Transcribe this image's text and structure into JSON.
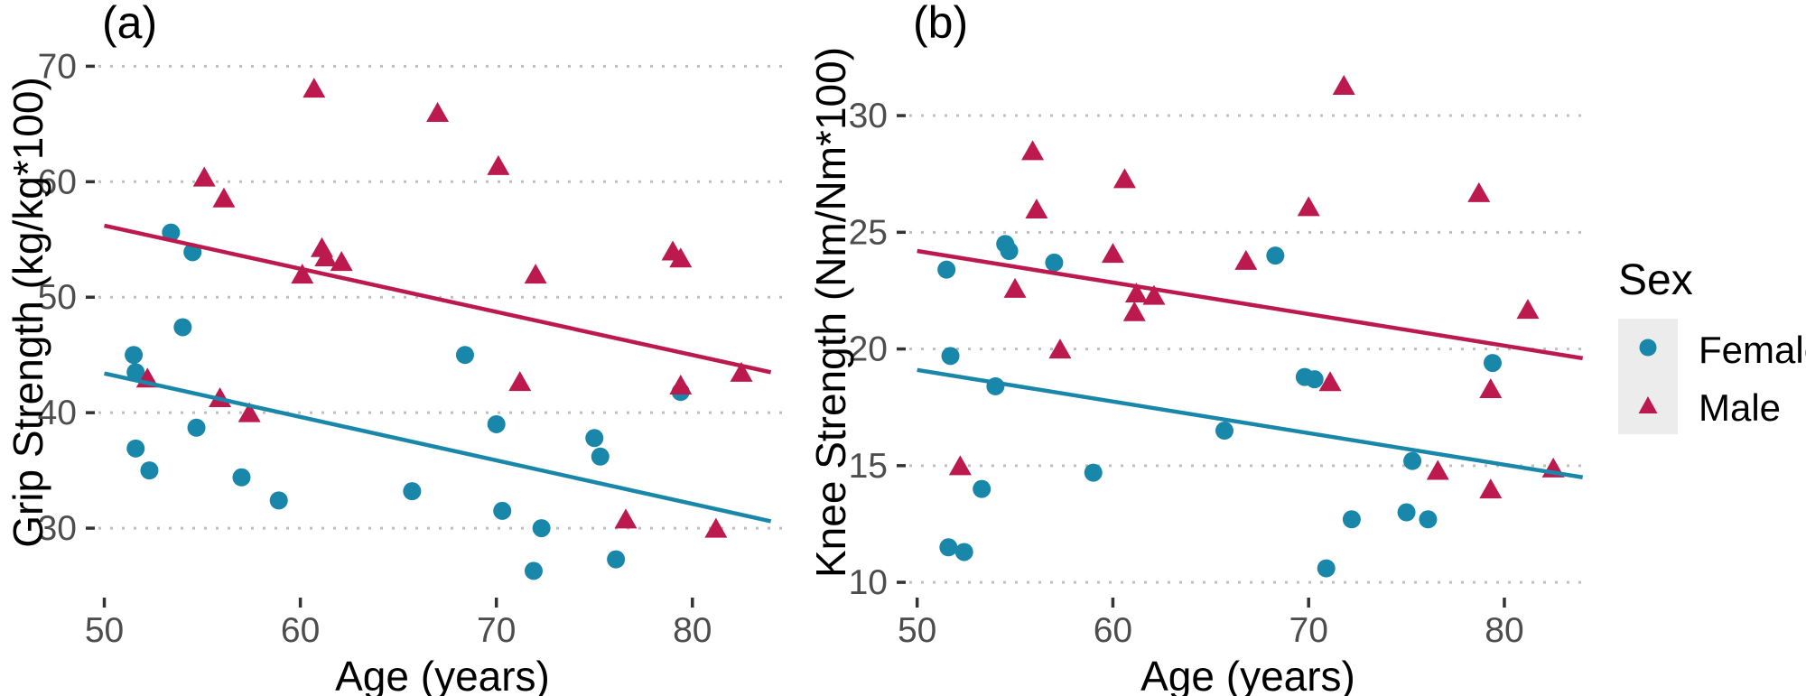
{
  "figure": {
    "background": "#FFFFFF",
    "legend": {
      "title": "Sex",
      "key_background": "#ECECEC",
      "entries": [
        {
          "label": "Female",
          "marker": "circle",
          "color": "#1987A9"
        },
        {
          "label": "Male",
          "marker": "triangle",
          "color": "#BC1A4E"
        }
      ]
    },
    "styles": {
      "grid_color": "#BFBFBF",
      "tick_color": "#333333",
      "tick_label_color": "#4D4D4D",
      "axis_title_color": "#000000"
    }
  },
  "chart_data": [
    {
      "type": "scatter",
      "panel_label": "(a)",
      "xlabel": "Age (years)",
      "ylabel": "Grip Strength (kg/kg*100)",
      "xlim": [
        49.7,
        84.8
      ],
      "ylim": [
        24.3,
        73.0
      ],
      "xticks": [
        50,
        60,
        70,
        80
      ],
      "yticks": [
        30,
        40,
        50,
        60,
        70
      ],
      "grid": "horizontal-dotted",
      "legend_position": "right-of-figure",
      "series": [
        {
          "name": "Female",
          "marker": "circle",
          "color": "#1987A9",
          "points": [
            [
              51.5,
              45.0
            ],
            [
              51.6,
              43.5
            ],
            [
              51.6,
              36.9
            ],
            [
              52.3,
              35.0
            ],
            [
              53.4,
              55.6
            ],
            [
              54.0,
              47.4
            ],
            [
              54.5,
              53.9
            ],
            [
              54.7,
              38.7
            ],
            [
              57.0,
              34.4
            ],
            [
              58.9,
              32.4
            ],
            [
              65.7,
              33.2
            ],
            [
              68.4,
              45.0
            ],
            [
              70.0,
              39.0
            ],
            [
              70.3,
              31.5
            ],
            [
              71.9,
              26.3
            ],
            [
              72.3,
              30.0
            ],
            [
              75.0,
              37.8
            ],
            [
              75.3,
              36.2
            ],
            [
              76.1,
              27.3
            ],
            [
              79.4,
              41.8
            ]
          ],
          "trend": {
            "x": [
              50,
              84
            ],
            "y": [
              43.4,
              30.6
            ]
          }
        },
        {
          "name": "Male",
          "marker": "triangle",
          "color": "#BC1A4E",
          "points": [
            [
              52.2,
              43.0
            ],
            [
              55.1,
              60.4
            ],
            [
              55.9,
              41.3
            ],
            [
              56.1,
              58.6
            ],
            [
              57.4,
              40.0
            ],
            [
              60.1,
              52.0
            ],
            [
              60.7,
              68.1
            ],
            [
              61.1,
              54.3
            ],
            [
              61.3,
              53.5
            ],
            [
              62.1,
              53.1
            ],
            [
              67.0,
              66.0
            ],
            [
              70.1,
              61.4
            ],
            [
              71.2,
              42.7
            ],
            [
              72.0,
              52.0
            ],
            [
              76.6,
              30.8
            ],
            [
              79.0,
              54.0
            ],
            [
              79.4,
              53.4
            ],
            [
              79.4,
              42.4
            ],
            [
              81.2,
              30.0
            ],
            [
              82.5,
              43.5
            ]
          ],
          "trend": {
            "x": [
              50,
              84
            ],
            "y": [
              56.2,
              43.5
            ]
          }
        }
      ]
    },
    {
      "type": "scatter",
      "panel_label": "(b)",
      "xlabel": "Age (years)",
      "ylabel": "Knee Strength (Nm/Nm*100)",
      "xlim": [
        49.6,
        84.2
      ],
      "ylim": [
        9.5,
        33.6
      ],
      "xticks": [
        50,
        60,
        70,
        80
      ],
      "yticks": [
        10,
        15,
        20,
        25,
        30
      ],
      "grid": "horizontal-dotted",
      "legend_position": "right-of-figure",
      "series": [
        {
          "name": "Female",
          "marker": "circle",
          "color": "#1987A9",
          "points": [
            [
              51.5,
              23.4
            ],
            [
              51.6,
              11.5
            ],
            [
              51.7,
              19.7
            ],
            [
              52.4,
              11.3
            ],
            [
              53.3,
              14.0
            ],
            [
              54.0,
              18.4
            ],
            [
              54.5,
              24.5
            ],
            [
              54.7,
              24.2
            ],
            [
              57.0,
              23.7
            ],
            [
              59.0,
              14.7
            ],
            [
              65.7,
              16.5
            ],
            [
              68.3,
              24.0
            ],
            [
              69.8,
              18.8
            ],
            [
              70.3,
              18.7
            ],
            [
              70.9,
              10.6
            ],
            [
              72.2,
              12.7
            ],
            [
              75.0,
              13.0
            ],
            [
              75.3,
              15.2
            ],
            [
              76.1,
              12.7
            ],
            [
              79.4,
              19.4
            ]
          ],
          "trend": {
            "x": [
              50,
              84
            ],
            "y": [
              19.1,
              14.5
            ]
          }
        },
        {
          "name": "Male",
          "marker": "triangle",
          "color": "#BC1A4E",
          "points": [
            [
              52.2,
              15.0
            ],
            [
              55.0,
              22.6
            ],
            [
              55.9,
              28.5
            ],
            [
              56.1,
              26.0
            ],
            [
              57.3,
              20.0
            ],
            [
              60.0,
              24.1
            ],
            [
              60.6,
              27.3
            ],
            [
              61.1,
              21.6
            ],
            [
              61.2,
              22.4
            ],
            [
              62.1,
              22.3
            ],
            [
              66.8,
              23.8
            ],
            [
              70.0,
              26.1
            ],
            [
              71.1,
              18.6
            ],
            [
              71.8,
              31.3
            ],
            [
              76.6,
              14.8
            ],
            [
              78.7,
              26.7
            ],
            [
              79.3,
              18.3
            ],
            [
              79.3,
              14.0
            ],
            [
              81.2,
              21.7
            ],
            [
              82.5,
              14.9
            ]
          ],
          "trend": {
            "x": [
              50,
              84
            ],
            "y": [
              24.2,
              19.6
            ]
          }
        }
      ]
    }
  ]
}
